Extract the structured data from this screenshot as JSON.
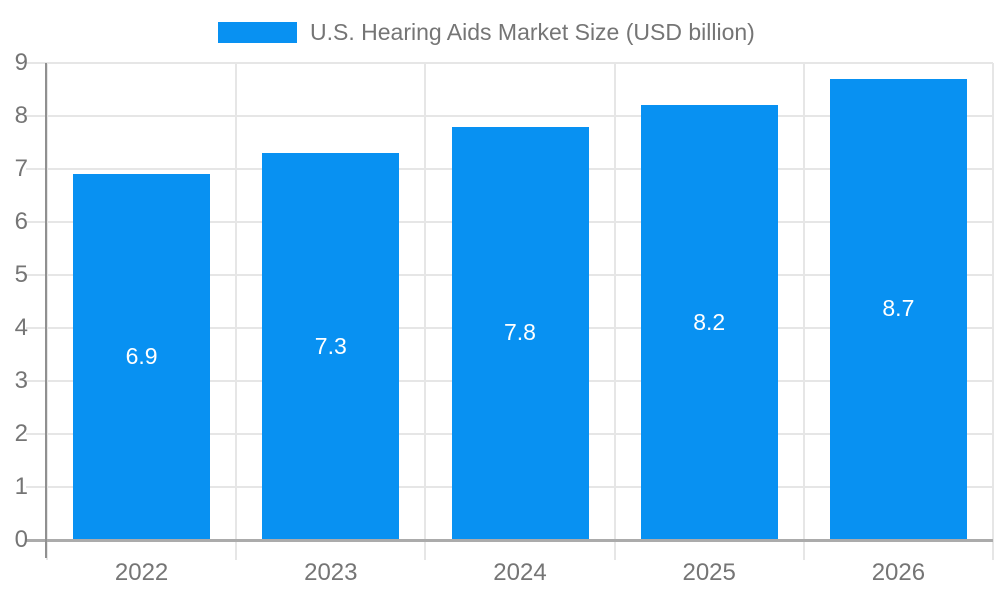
{
  "chart_data": {
    "type": "bar",
    "title": "U.S. Hearing Aids Market Size (USD billion)",
    "categories": [
      "2022",
      "2023",
      "2024",
      "2025",
      "2026"
    ],
    "series": [
      {
        "name": "U.S. Hearing Aids Market Size (USD billion)",
        "values": [
          6.9,
          7.3,
          7.8,
          8.2,
          8.7
        ]
      }
    ],
    "bar_value_labels": [
      "6.9",
      "7.3",
      "7.8",
      "8.2",
      "8.7"
    ],
    "xlabel": "",
    "ylabel": "",
    "ylim": [
      0,
      9
    ],
    "ytick_step": 1,
    "yticks": [
      0,
      1,
      2,
      3,
      4,
      5,
      6,
      7,
      8,
      9
    ],
    "grid": true,
    "legend_position": "top-center",
    "value_labels_inside_bars": true,
    "colors": {
      "bar": "#0891F2",
      "axis_text": "#757575",
      "legend_text": "#757575",
      "gridline": "#e6e6e6",
      "axis_line": "#909090",
      "baseline": "#ababab",
      "value_label_text": "#ffffff",
      "background": "#ffffff"
    }
  }
}
